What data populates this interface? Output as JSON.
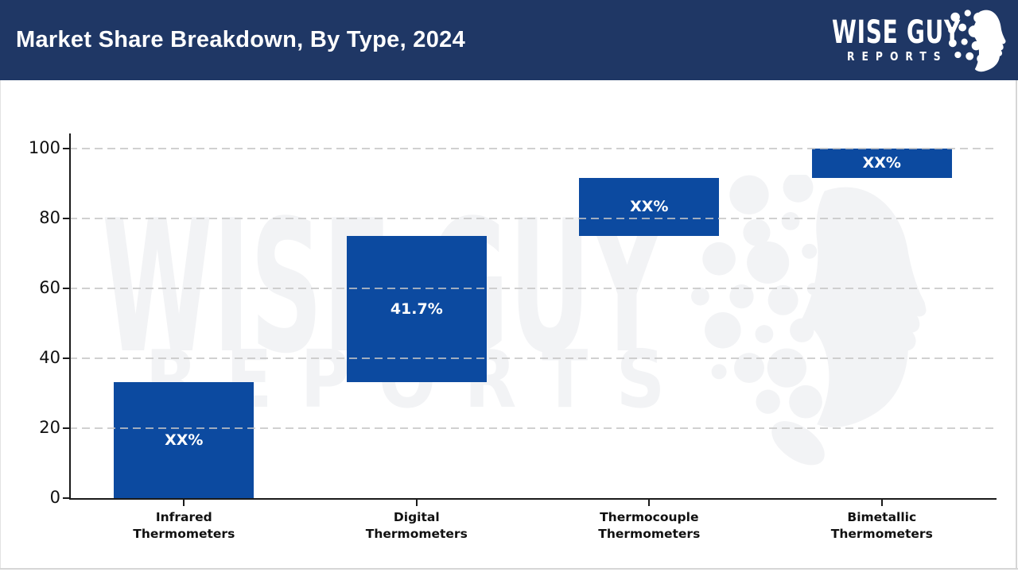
{
  "header": {
    "title": "Market Share Breakdown, By Type, 2024",
    "bg_color": "#1f3765",
    "logo": {
      "line1": "WISE GUY",
      "line2": "REPORTS",
      "face_icon": "dotted-head-profile"
    }
  },
  "watermark": {
    "line1": "WISE GUY",
    "line2": "REPORTS",
    "face_icon": "dotted-head-profile"
  },
  "chart_data": {
    "type": "bar",
    "subtype": "floating-segment waterfall (cumulative market share)",
    "title": "Market Share Breakdown, By Type, 2024",
    "categories": [
      "Infrared Thermometers",
      "Digital Thermometers",
      "Thermocouple Thermometers",
      "Bimetallic Thermometers"
    ],
    "segments": [
      {
        "category": "Infrared Thermometers",
        "start": 0,
        "end": 33.3,
        "value": 33.3,
        "label": "XX%"
      },
      {
        "category": "Digital Thermometers",
        "start": 33.3,
        "end": 75,
        "value": 41.7,
        "label": "41.7%"
      },
      {
        "category": "Thermocouple Thermometers",
        "start": 75,
        "end": 91.7,
        "value": 16.7,
        "label": "XX%"
      },
      {
        "category": "Bimetallic Thermometers",
        "start": 91.7,
        "end": 100,
        "value": 8.3,
        "label": "XX%"
      }
    ],
    "ylim": [
      0,
      100
    ],
    "yticks": [
      0,
      20,
      40,
      60,
      80,
      100
    ],
    "ytick_labels": [
      "0",
      "20",
      "40",
      "60",
      "80",
      "100"
    ],
    "xlabel": "",
    "ylabel": "",
    "legend": "none",
    "grid": "horizontal dashed lines drawn above bars",
    "colors": {
      "bar": "#0c4aa0",
      "bar_label": "#ffffff",
      "axis": "#1a1a1a",
      "grid": "#d9d9d9",
      "background": "#ffffff"
    }
  }
}
